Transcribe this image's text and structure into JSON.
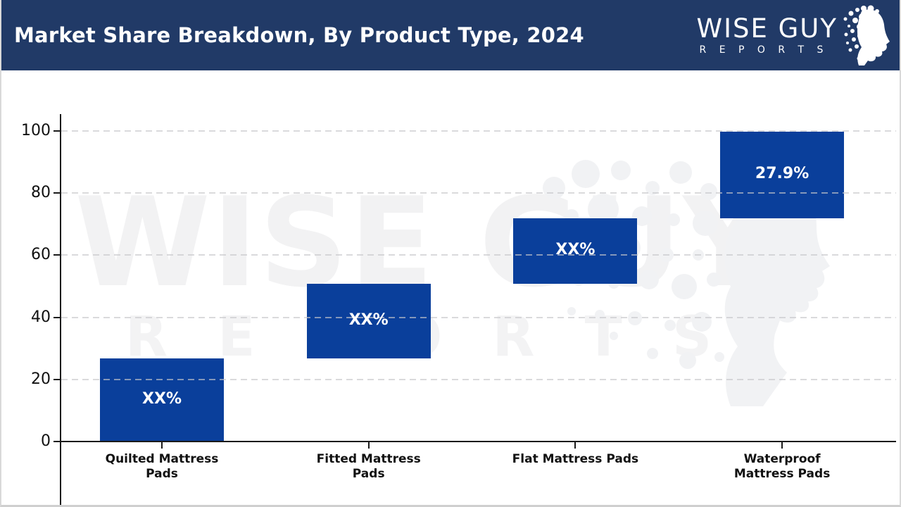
{
  "header": {
    "title": "Market Share Breakdown, By Product Type, 2024"
  },
  "logo": {
    "wordmark": "WISE GUY",
    "subtext": "R E P O R T S"
  },
  "watermark": {
    "wordmark": "WISE GUY",
    "subtext": "R E P O R T S"
  },
  "colors": {
    "header_bg": "#213a67",
    "bar_fill": "#0a3f9b",
    "bar_label_text": "#ffffff",
    "axis": "#1a1a1a",
    "gridline": "#d9d9d9",
    "watermark": "#f2f2f3",
    "frame_border": "#d4d4d4"
  },
  "chart_data": {
    "type": "bar",
    "subtype": "floating-segment-waterfall",
    "title": "Market Share Breakdown, By Product Type, 2024",
    "xlabel": "",
    "ylabel": "",
    "ylim": [
      0,
      100
    ],
    "yticks": [
      0,
      20,
      40,
      60,
      80,
      100
    ],
    "grid": "horizontal-dashed",
    "legend": "none",
    "categories": [
      "Quilted Mattress Pads",
      "Fitted Mattress Pads",
      "Flat Mattress Pads",
      "Waterproof Mattress Pads"
    ],
    "category_display": [
      "Quilted Mattress\nPads",
      "Fitted Mattress\nPads",
      "Flat Mattress Pads",
      "Waterproof\nMattress Pads"
    ],
    "segments": [
      {
        "category": "Quilted Mattress Pads",
        "start": 0,
        "end": 26.8,
        "value": 26.8,
        "label": "XX%"
      },
      {
        "category": "Fitted Mattress Pads",
        "start": 26.8,
        "end": 50.8,
        "value": 24.0,
        "label": "XX%"
      },
      {
        "category": "Flat Mattress Pads",
        "start": 50.8,
        "end": 71.9,
        "value": 21.1,
        "label": "XX%"
      },
      {
        "category": "Waterproof Mattress Pads",
        "start": 71.9,
        "end": 99.8,
        "value": 27.9,
        "label": "27.9%"
      }
    ]
  }
}
